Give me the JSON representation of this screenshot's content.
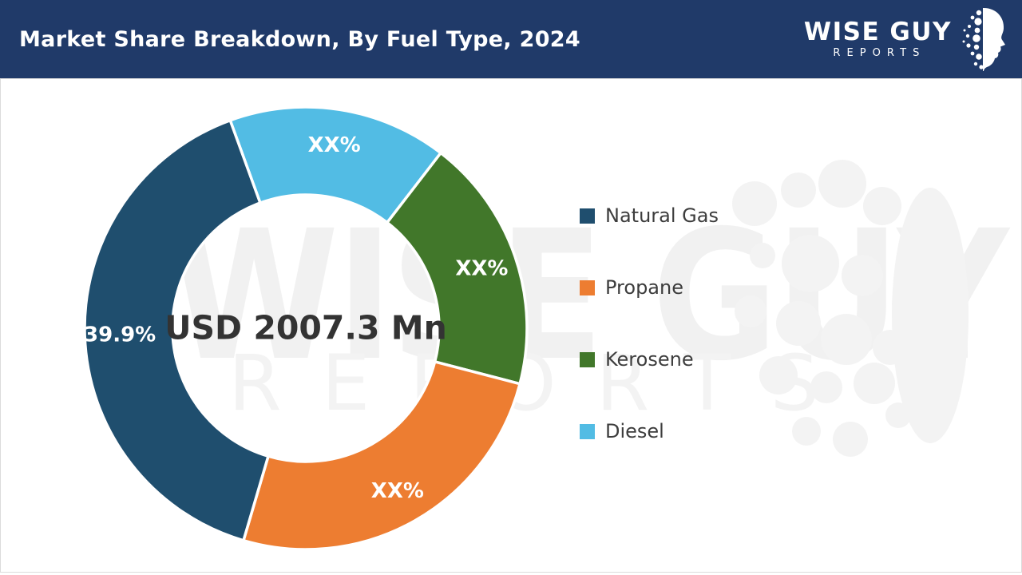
{
  "header": {
    "title": "Market Share Breakdown, By Fuel Type, 2024",
    "logo": {
      "line1": "WISE GUY",
      "line2": "REPORTS"
    }
  },
  "watermark": {
    "big": "WISE GUY",
    "small": "REPORTS"
  },
  "chart_data": {
    "type": "pie",
    "donut": true,
    "title": "Market Share Breakdown, By Fuel Type, 2024",
    "center_label": "USD 2007.3 Mn",
    "start_angle_deg_clockwise_from_top": -20,
    "slices": [
      {
        "name": "Diesel",
        "display_label": "XX%",
        "percent": 16.0,
        "color": "#52BCE4"
      },
      {
        "name": "Kerosene",
        "display_label": "XX%",
        "percent": 18.6,
        "color": "#41772A"
      },
      {
        "name": "Propane",
        "display_label": "XX%",
        "percent": 25.5,
        "color": "#ED7D31"
      },
      {
        "name": "Natural Gas",
        "display_label": "39.9%",
        "percent": 39.9,
        "color": "#1F4E6E"
      }
    ],
    "legend": [
      "Natural Gas",
      "Propane",
      "Kerosene",
      "Diesel"
    ],
    "legend_position": "right"
  }
}
